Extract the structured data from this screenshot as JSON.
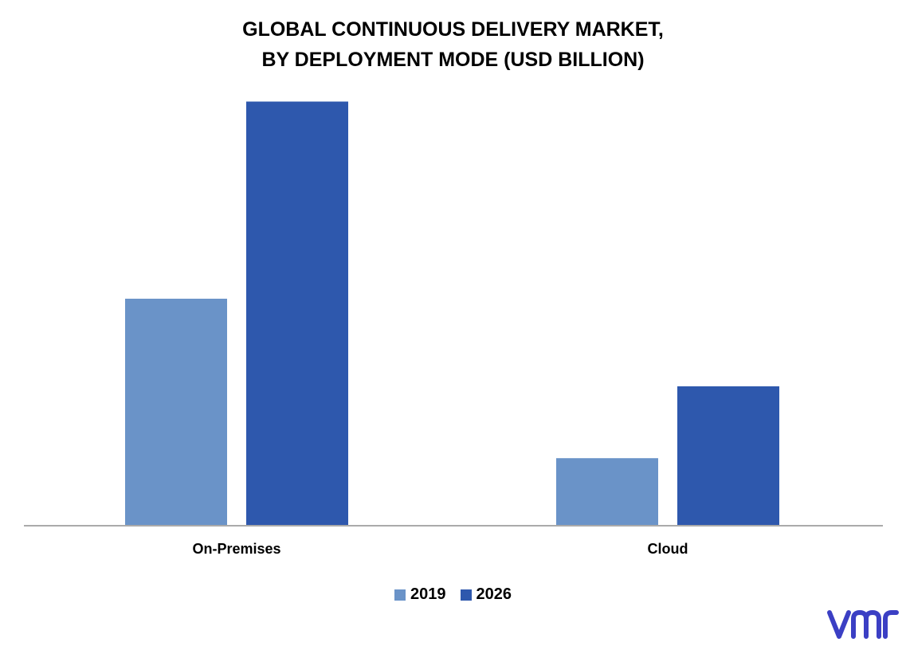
{
  "chart_data": {
    "type": "bar",
    "title_lines": [
      "GLOBAL CONTINUOUS DELIVERY MARKET,",
      "BY DEPLOYMENT MODE (USD BILLION)"
    ],
    "categories": [
      "On-Premises",
      "Cloud"
    ],
    "series": [
      {
        "name": "2019",
        "values": [
          2.6,
          0.78
        ],
        "color": "#6a93c8"
      },
      {
        "name": "2026",
        "values": [
          4.85,
          1.6
        ],
        "color": "#2e58ad"
      }
    ],
    "ylim": [
      0,
      5
    ],
    "grid": false,
    "legend_position": "bottom",
    "xlabel": "",
    "ylabel": ""
  },
  "brand": {
    "logo_icon": "vmr-logo-icon",
    "color": "#3b3fc4"
  },
  "colors": {
    "axis": "#aaaaaa",
    "bar_outline": "#ffffff"
  }
}
